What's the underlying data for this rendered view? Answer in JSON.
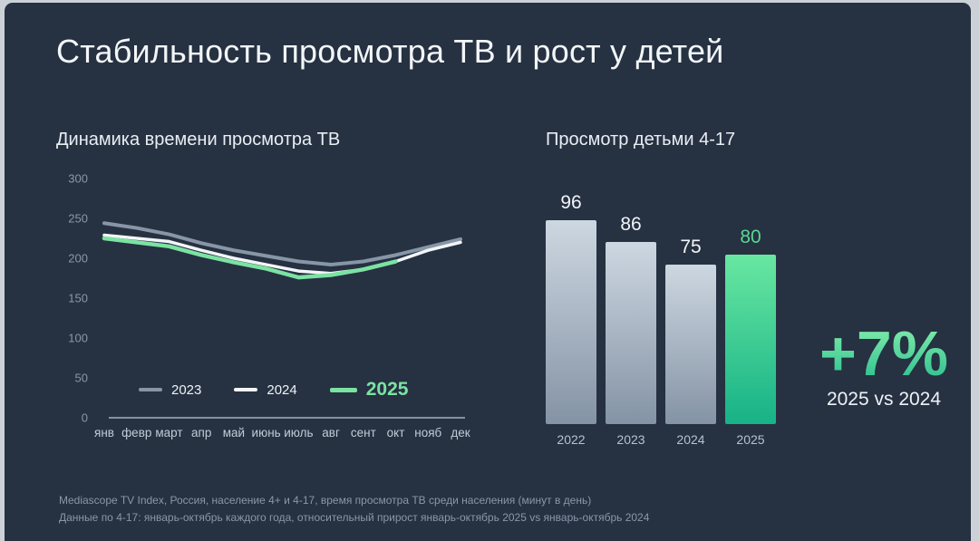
{
  "slide": {
    "title": "Стабильность просмотра ТВ и рост у детей",
    "footer_line1": "Mediascope TV Index, Россия, население 4+ и 4-17, время просмотра ТВ среди населения (минут в день)",
    "footer_line2": "Данные по 4-17: январь-октябрь каждого года, относительный прирост январь-октябрь 2025 vs январь-октябрь 2024"
  },
  "colors": {
    "slide_background": "#263142",
    "frame": "#ccd1d8",
    "text_primary": "#f3f6f8",
    "text_muted": "#8b97a8",
    "accent_green": "#56d992",
    "line_2023": "#8796a6",
    "line_2024": "#f2f5f8",
    "line_2025": "#7be3a2",
    "bar_gray_top": "#cdd7e1",
    "bar_gray_bottom": "#8493a5",
    "bar_green_top": "#68e7a1",
    "bar_green_bottom": "#17b287"
  },
  "chart_data": [
    {
      "type": "line",
      "title": "Динамика времени просмотра ТВ",
      "x": [
        "янв",
        "февр",
        "март",
        "апр",
        "май",
        "июнь",
        "июль",
        "авг",
        "сент",
        "окт",
        "нояб",
        "дек"
      ],
      "ylabel": "минут в день",
      "ylim": [
        0,
        300
      ],
      "yticks": [
        0,
        50,
        100,
        150,
        200,
        250,
        300
      ],
      "grid": false,
      "legend_position": "bottom",
      "series": [
        {
          "name": "2023",
          "color": "#8796a6",
          "width": 4,
          "values": [
            244,
            238,
            230,
            219,
            210,
            203,
            196,
            192,
            196,
            204,
            214,
            224
          ]
        },
        {
          "name": "2024",
          "color": "#f2f5f8",
          "width": 3.5,
          "values": [
            229,
            225,
            221,
            210,
            200,
            192,
            184,
            181,
            186,
            196,
            210,
            220
          ]
        },
        {
          "name": "2025",
          "color": "#7be3a2",
          "width": 4.5,
          "values": [
            225,
            220,
            215,
            204,
            195,
            187,
            176,
            179,
            186,
            196,
            null,
            null
          ]
        }
      ]
    },
    {
      "type": "bar",
      "title": "Просмотр детьми 4-17",
      "categories": [
        "2022",
        "2023",
        "2024",
        "2025"
      ],
      "values": [
        96,
        86,
        75,
        80
      ],
      "highlight_index": 3,
      "ylim": [
        0,
        100
      ]
    }
  ],
  "callout": {
    "value": "+7%",
    "caption": "2025 vs 2024"
  }
}
